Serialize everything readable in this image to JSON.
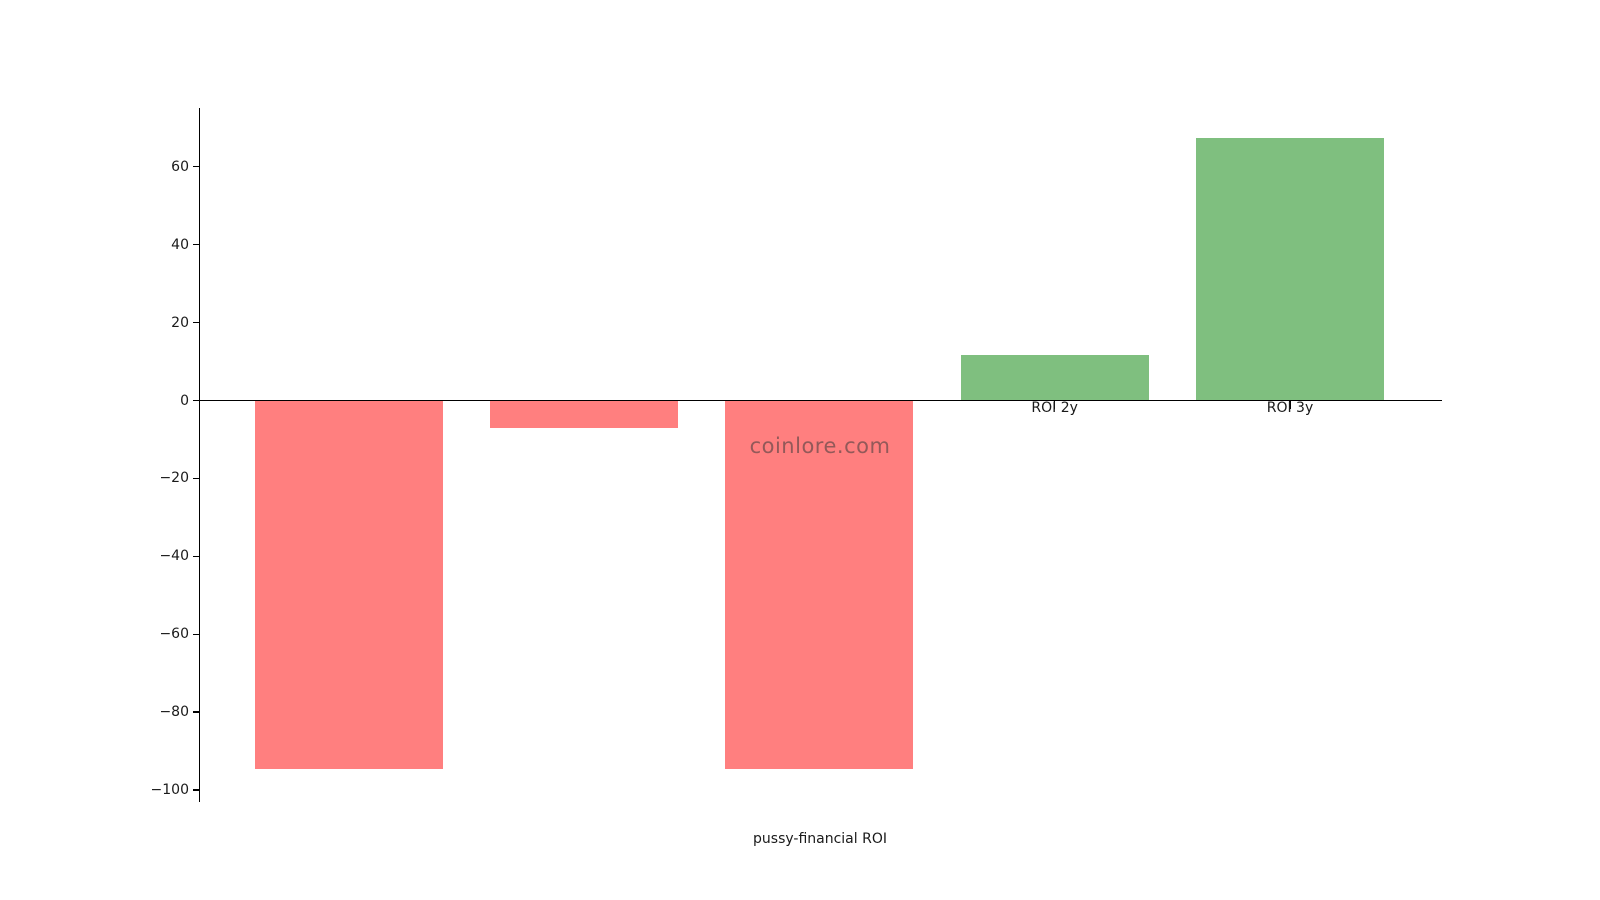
{
  "chart_data": {
    "type": "bar",
    "title": "",
    "xlabel": "pussy-financial ROI",
    "ylabel": "",
    "watermark": "coinlore.com",
    "categories": [
      "",
      "",
      "",
      "ROI 2y",
      "ROI 3y"
    ],
    "values": [
      -94.7,
      -7,
      -94.7,
      11.7,
      67.3
    ],
    "bar_colors": [
      "#ff7f7f",
      "#ff7f7f",
      "#ff7f7f",
      "#7fbf7f",
      "#7fbf7f"
    ],
    "positive_color": "#7fbf7f",
    "negative_color": "#ff7f7f",
    "axis_color": "#000000",
    "text_color": "#1a1a1a",
    "ylim": [
      -103,
      75
    ],
    "yticks": [
      60,
      40,
      20,
      0,
      -20,
      -40,
      -60,
      -80,
      -100
    ],
    "ytick_labels": [
      "60",
      "40",
      "20",
      "0",
      "−20",
      "−40",
      "−60",
      "−80",
      "−100"
    ],
    "grid": false,
    "legend_position": "none",
    "background": "#ffffff"
  }
}
